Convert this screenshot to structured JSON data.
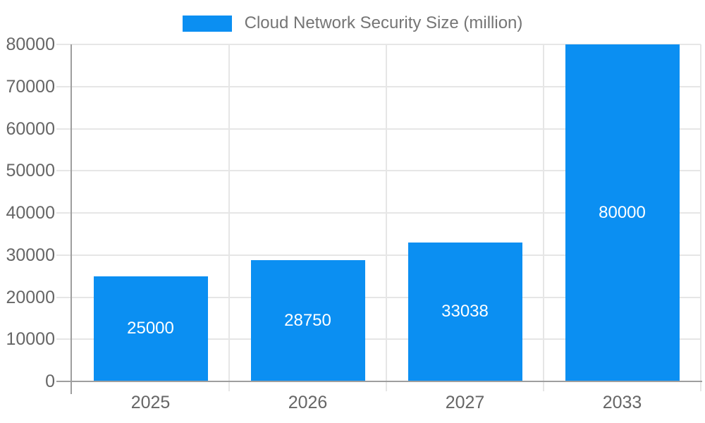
{
  "chart_data": {
    "type": "bar",
    "title": "Cloud Network Security Size (million)",
    "legend": {
      "position": "top",
      "entries": [
        "Cloud Network Security Size (million)"
      ]
    },
    "categories": [
      "2025",
      "2026",
      "2027",
      "2033"
    ],
    "series": [
      {
        "name": "Cloud Network Security Size (million)",
        "values": [
          25000,
          28750,
          33038,
          80000
        ]
      }
    ],
    "bar_labels": [
      "25000",
      "28750",
      "33038",
      "80000"
    ],
    "xlabel": "",
    "ylabel": "",
    "ylim": [
      0,
      80000
    ],
    "ytick_step": 10000,
    "ytick_labels": [
      "0",
      "10000",
      "20000",
      "30000",
      "40000",
      "50000",
      "60000",
      "70000",
      "80000"
    ],
    "grid": true
  },
  "colors": {
    "bar": "#0b8ff2",
    "bar_label_text": "#ffffff",
    "axis_line": "#9e9e9e",
    "gridline": "#e6e6e6",
    "tick_label": "#666666",
    "legend_text": "#757575",
    "background": "#ffffff"
  }
}
